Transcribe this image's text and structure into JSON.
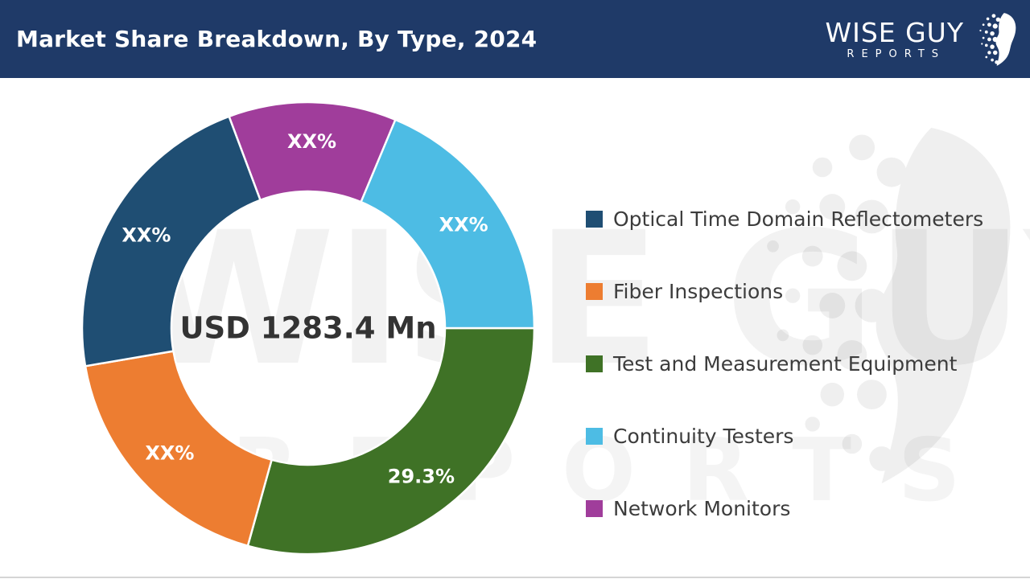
{
  "header": {
    "title": "Market Share Breakdown, By Type, 2024",
    "bg_color": "#1F3A68",
    "logo": {
      "line1": "WISE GUY",
      "line2": "REPORTS"
    }
  },
  "watermark": {
    "line1": "WISE GUY",
    "line2": "REPORTS"
  },
  "chart_data": {
    "type": "pie",
    "subtype": "donut",
    "title": "Market Share Breakdown, By Type, 2024",
    "center_label": "USD 1283.4 Mn",
    "start_angle_deg": -20.5,
    "legend_position": "right",
    "segments": [
      {
        "name": "Network Monitors",
        "value_pct": 12.0,
        "label": "XX%",
        "color": "#A03D9B"
      },
      {
        "name": "Continuity Testers",
        "value_pct": 18.7,
        "label": "XX%",
        "color": "#4DBCE4"
      },
      {
        "name": "Test and Measurement Equipment",
        "value_pct": 29.3,
        "label": "29.3%",
        "color": "#3F7226"
      },
      {
        "name": "Fiber Inspections",
        "value_pct": 18.0,
        "label": "XX%",
        "color": "#ED7D31"
      },
      {
        "name": "Optical Time Domain Reflectometers",
        "value_pct": 22.0,
        "label": "XX%",
        "color": "#1F4E73"
      }
    ],
    "legend": [
      {
        "label": "Optical Time Domain Reflectometers",
        "color": "#1F4E73"
      },
      {
        "label": "Fiber Inspections",
        "color": "#ED7D31"
      },
      {
        "label": "Test and Measurement Equipment",
        "color": "#3F7226"
      },
      {
        "label": "Continuity Testers",
        "color": "#4DBCE4"
      },
      {
        "label": "Network Monitors",
        "color": "#A03D9B"
      }
    ]
  }
}
